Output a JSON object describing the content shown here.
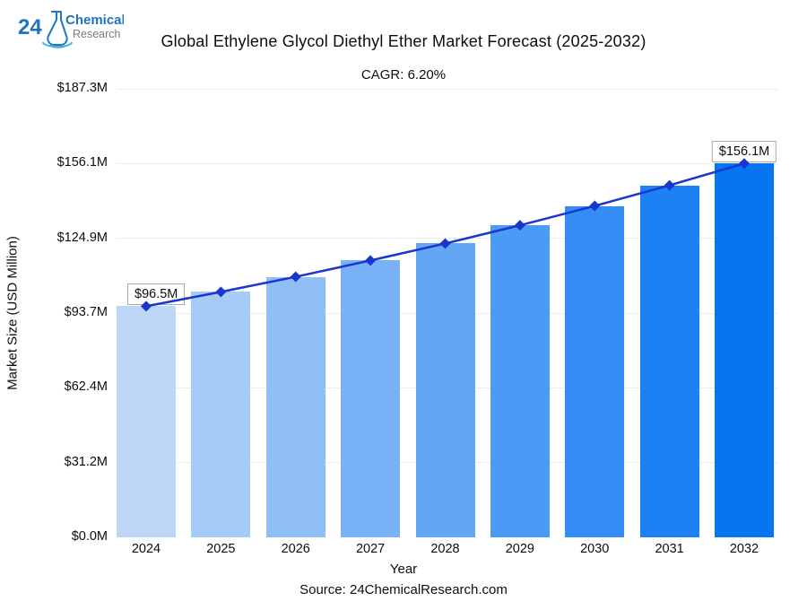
{
  "logo": {
    "number": "24",
    "word1": "Chemical",
    "word2": "Research",
    "accent_color": "#1E73BE",
    "swirl_color": "#45B6D8",
    "gray_color": "#7B7B7B"
  },
  "header": {
    "title": "Global Ethylene Glycol Diethyl Ether Market Forecast (2025-2032)",
    "subtitle": "CAGR: 6.20%"
  },
  "chart_data": {
    "type": "bar",
    "overlay": "line",
    "title": "Global Ethylene Glycol Diethyl Ether Market Forecast (2025-2032)",
    "subtitle": "CAGR: 6.20%",
    "xlabel": "Year",
    "ylabel": "Market Size (USD Million)",
    "categories": [
      "2024",
      "2025",
      "2026",
      "2027",
      "2028",
      "2029",
      "2030",
      "2031",
      "2032"
    ],
    "values": [
      96.5,
      102.5,
      108.8,
      115.6,
      122.7,
      130.3,
      138.4,
      147.0,
      156.1
    ],
    "ylim": [
      0,
      187.3
    ],
    "yticks": [
      "$0.0M",
      "$31.2M",
      "$62.4M",
      "$93.7M",
      "$124.9M",
      "$156.1M",
      "$187.3M"
    ],
    "grid": true,
    "legend": "none",
    "annotations": [
      {
        "index": 0,
        "text": "$96.5M"
      },
      {
        "index": 8,
        "text": "$156.1M"
      }
    ],
    "bar_colors": [
      "#BED7F8",
      "#A7CBF7",
      "#90BFF7",
      "#79B2F6",
      "#62A6F5",
      "#4B9AF5",
      "#348DF4",
      "#1D81F3",
      "#0675F2"
    ],
    "line_color": "#1A35D0",
    "grid_color": "#EDEDED"
  },
  "footer": {
    "source": "Source: 24ChemicalResearch.com"
  }
}
